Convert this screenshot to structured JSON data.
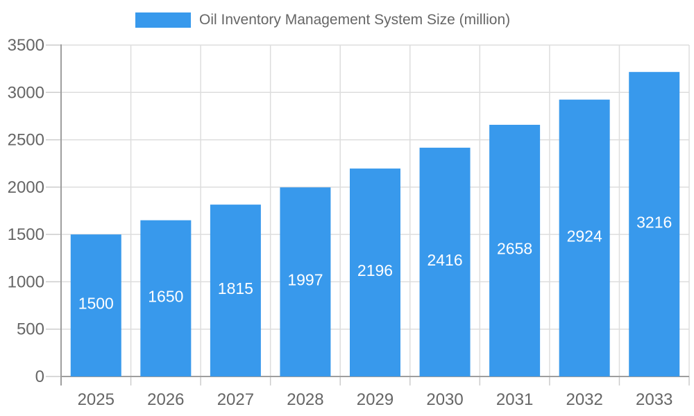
{
  "legend": {
    "label": "Oil Inventory Management System Size (million)"
  },
  "chart_data": {
    "type": "bar",
    "title": "",
    "legend": "Oil Inventory Management System Size (million)",
    "categories": [
      "2025",
      "2026",
      "2027",
      "2028",
      "2029",
      "2030",
      "2031",
      "2032",
      "2033"
    ],
    "values": [
      1500,
      1650,
      1815,
      1997,
      2196,
      2416,
      2658,
      2924,
      3216
    ],
    "xlabel": "",
    "ylabel": "",
    "ylim": [
      0,
      3500
    ],
    "ytick_step": 500,
    "yticks": [
      0,
      500,
      1000,
      1500,
      2000,
      2500,
      3000,
      3500
    ],
    "grid": true,
    "legend_position": "top",
    "value_labels": "inside-center",
    "colors": {
      "bar": "#3899ec",
      "value_label": "#ffffff",
      "axis_label": "#666666",
      "grid_line": "#dddddd",
      "tick_line": "#cccccc",
      "axis_line": "#9e9e9e",
      "background": "#ffffff"
    }
  }
}
